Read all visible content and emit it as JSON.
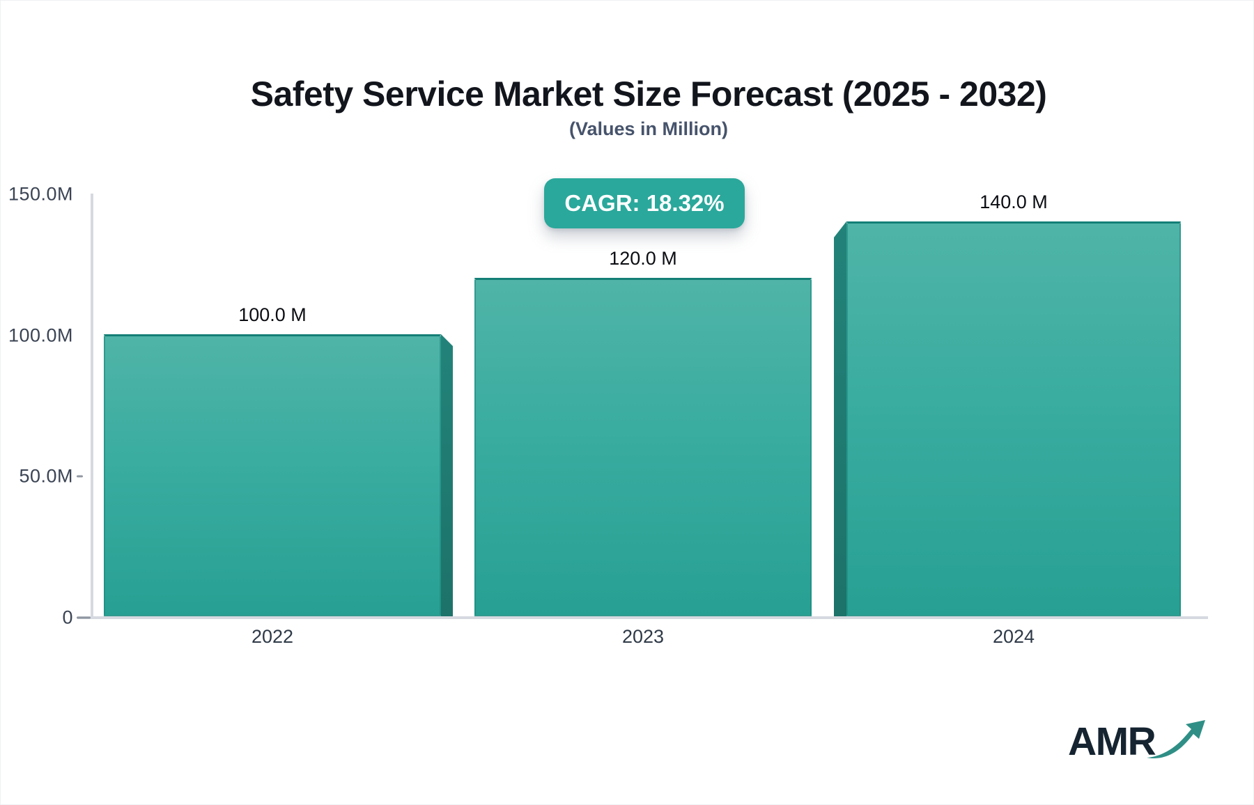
{
  "header": {
    "title": "Safety Service Market Size Forecast (2025 - 2032)",
    "subtitle": "(Values in Million)"
  },
  "badge": {
    "label": "CAGR: 18.32%"
  },
  "chart_data": {
    "type": "bar",
    "title": "Safety Service Market Size Forecast (2025 - 2032)",
    "subtitle": "(Values in Million)",
    "categories": [
      "2022",
      "2023",
      "2024"
    ],
    "values": [
      100.0,
      120.0,
      140.0
    ],
    "value_labels": [
      "100.0 M",
      "120.0 M",
      "140.0 M"
    ],
    "unit": "Million (M)",
    "xlabel": "",
    "ylabel": "",
    "ylim": [
      0,
      150
    ],
    "ytick_labels": [
      "150.0M",
      "100.0M",
      "50.0M",
      "0"
    ],
    "ytick_values": [
      150,
      100,
      50,
      0
    ],
    "grid": false,
    "legend": false,
    "annotation": "CAGR: 18.32%",
    "bar_gradient_top": "#50b4a8",
    "bar_gradient_bottom": "#27a093",
    "bar_side_color": "#1f7d73"
  },
  "axis": {
    "yticks": [
      {
        "label": "150.0M",
        "value": 150
      },
      {
        "label": "100.0M",
        "value": 100
      },
      {
        "label": "50.0M",
        "value": 50
      },
      {
        "label": "0",
        "value": 0
      }
    ]
  },
  "bars": [
    {
      "category": "2022",
      "value": 100.0,
      "value_label": "100.0 M"
    },
    {
      "category": "2023",
      "value": 120.0,
      "value_label": "120.0 M"
    },
    {
      "category": "2024",
      "value": 140.0,
      "value_label": "140.0 M"
    }
  ],
  "logo": {
    "text": "AMR"
  },
  "colors": {
    "accent_teal": "#2aa89b",
    "badge_text": "#ffffff",
    "title_color": "#12151c",
    "subtitle_color": "#46536b",
    "axis_line": "#d6d9e0",
    "tick_label": "#3b4454",
    "x_label": "#2e3947",
    "logo_navy": "#152430",
    "logo_arrow": "#2f8f86"
  }
}
